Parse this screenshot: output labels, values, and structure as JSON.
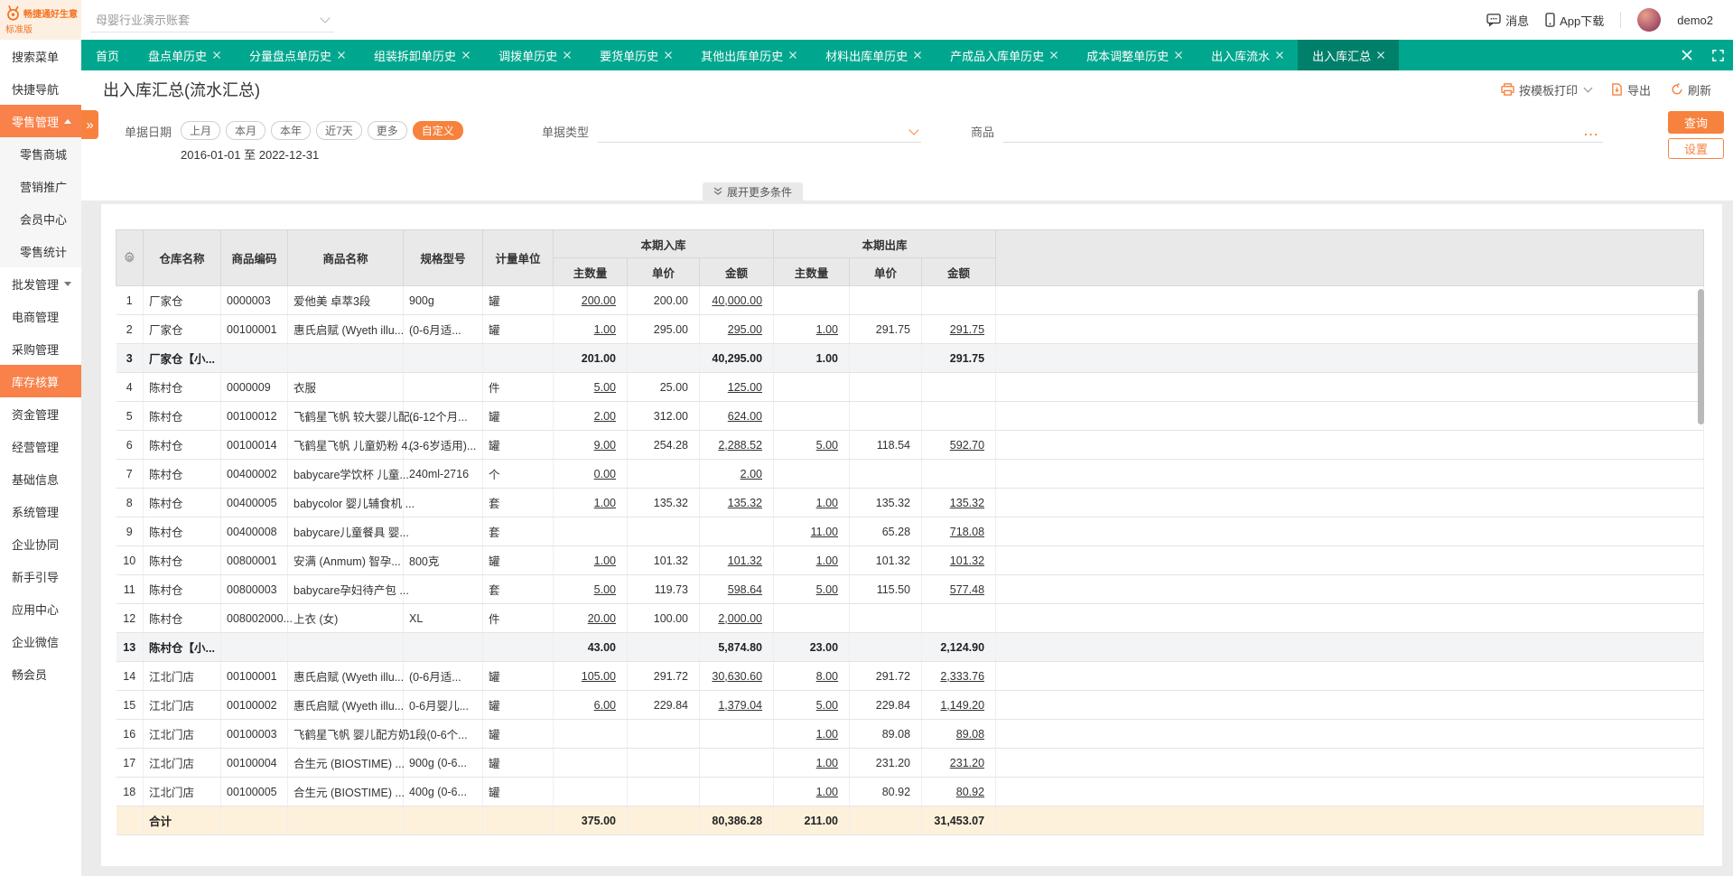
{
  "colors": {
    "accent_orange": "#f7823e",
    "teal": "#00a78e",
    "teal_active_tab": "#00806b",
    "total_row_bg": "#fdf1dc"
  },
  "topbar": {
    "logo_title": "畅捷通好生意",
    "logo_edition": "标准版",
    "account": "母婴行业演示账套",
    "messages_label": "消息",
    "app_download_label": "App下载",
    "username": "demo2"
  },
  "tabs": {
    "items": [
      {
        "label": "首页",
        "closable": false,
        "active": false
      },
      {
        "label": "盘点单历史",
        "closable": true,
        "active": false
      },
      {
        "label": "分量盘点单历史",
        "closable": true,
        "active": false
      },
      {
        "label": "组装拆卸单历史",
        "closable": true,
        "active": false
      },
      {
        "label": "调拨单历史",
        "closable": true,
        "active": false
      },
      {
        "label": "要货单历史",
        "closable": true,
        "active": false
      },
      {
        "label": "其他出库单历史",
        "closable": true,
        "active": false
      },
      {
        "label": "材料出库单历史",
        "closable": true,
        "active": false
      },
      {
        "label": "产成品入库单历史",
        "closable": true,
        "active": false
      },
      {
        "label": "成本调整单历史",
        "closable": true,
        "active": false
      },
      {
        "label": "出入库流水",
        "closable": true,
        "active": false
      },
      {
        "label": "出入库汇总",
        "closable": true,
        "active": true
      }
    ]
  },
  "sidebar": {
    "items": [
      {
        "label": "搜索菜单",
        "type": "item"
      },
      {
        "label": "快捷导航",
        "type": "item"
      },
      {
        "label": "零售管理",
        "type": "group",
        "state": "open",
        "active": true
      },
      {
        "label": "零售商城",
        "type": "sub"
      },
      {
        "label": "营销推广",
        "type": "sub"
      },
      {
        "label": "会员中心",
        "type": "sub"
      },
      {
        "label": "零售统计",
        "type": "sub"
      },
      {
        "label": "批发管理",
        "type": "group",
        "state": "closed"
      },
      {
        "label": "电商管理",
        "type": "item"
      },
      {
        "label": "采购管理",
        "type": "item"
      },
      {
        "label": "库存核算",
        "type": "item",
        "active": true
      },
      {
        "label": "资金管理",
        "type": "item"
      },
      {
        "label": "经营管理",
        "type": "item"
      },
      {
        "label": "基础信息",
        "type": "item"
      },
      {
        "label": "系统管理",
        "type": "item"
      },
      {
        "label": "企业协同",
        "type": "item"
      },
      {
        "label": "新手引导",
        "type": "item"
      },
      {
        "label": "应用中心",
        "type": "item"
      },
      {
        "label": "企业微信",
        "type": "item"
      },
      {
        "label": "畅会员",
        "type": "item"
      }
    ]
  },
  "page": {
    "title": "出入库汇总(流水汇总)",
    "actions": {
      "print": "按模板打印",
      "export": "导出",
      "refresh": "刷新"
    }
  },
  "filters": {
    "date_label": "单据日期",
    "date_presets": [
      "上月",
      "本月",
      "本年",
      "近7天",
      "更多"
    ],
    "date_custom": "自定义",
    "date_range": "2016-01-01 至 2022-12-31",
    "doc_type_label": "单据类型",
    "product_label": "商品",
    "search_button": "查询",
    "settings_button": "设置",
    "expand_more": "展开更多条件"
  },
  "table": {
    "columns": [
      "仓库名称",
      "商品编码",
      "商品名称",
      "规格型号",
      "计量单位"
    ],
    "group_in": "本期入库",
    "group_out": "本期出库",
    "sub_columns": [
      "主数量",
      "单价",
      "金额"
    ],
    "rows": [
      {
        "no": "1",
        "type": "data",
        "warehouse": "厂家仓",
        "code": "0000003",
        "name": "爱他美 卓萃3段",
        "spec": "900g",
        "unit": "罐",
        "in_qty": "200.00",
        "in_price": "200.00",
        "in_amt": "40,000.00",
        "out_qty": "",
        "out_price": "",
        "out_amt": ""
      },
      {
        "no": "2",
        "type": "data",
        "warehouse": "厂家仓",
        "code": "00100001",
        "name": "惠氏启赋 (Wyeth illu...",
        "spec": "(0-6月适...",
        "unit": "罐",
        "in_qty": "1.00",
        "in_price": "295.00",
        "in_amt": "295.00",
        "out_qty": "1.00",
        "out_price": "291.75",
        "out_amt": "291.75"
      },
      {
        "no": "3",
        "type": "subtotal",
        "warehouse": "厂家仓【小...",
        "code": "",
        "name": "",
        "spec": "",
        "unit": "",
        "in_qty": "201.00",
        "in_price": "",
        "in_amt": "40,295.00",
        "out_qty": "1.00",
        "out_price": "",
        "out_amt": "291.75"
      },
      {
        "no": "4",
        "type": "data",
        "warehouse": "陈村仓",
        "code": "0000009",
        "name": "衣服",
        "spec": "",
        "unit": "件",
        "in_qty": "5.00",
        "in_price": "25.00",
        "in_amt": "125.00",
        "out_qty": "",
        "out_price": "",
        "out_amt": ""
      },
      {
        "no": "5",
        "type": "data",
        "warehouse": "陈村仓",
        "code": "00100012",
        "name": "飞鹤星飞帆 较大婴儿配...",
        "spec": "(6-12个月...",
        "unit": "罐",
        "in_qty": "2.00",
        "in_price": "312.00",
        "in_amt": "624.00",
        "out_qty": "",
        "out_price": "",
        "out_amt": ""
      },
      {
        "no": "6",
        "type": "data",
        "warehouse": "陈村仓",
        "code": "00100014",
        "name": "飞鹤星飞帆 儿童奶粉 4...",
        "spec": "(3-6岁适用)...",
        "unit": "罐",
        "in_qty": "9.00",
        "in_price": "254.28",
        "in_amt": "2,288.52",
        "out_qty": "5.00",
        "out_price": "118.54",
        "out_amt": "592.70"
      },
      {
        "no": "7",
        "type": "data",
        "warehouse": "陈村仓",
        "code": "00400002",
        "name": "babycare学饮杯 儿童...",
        "spec": "240ml-2716",
        "unit": "个",
        "in_qty": "0.00",
        "in_price": "",
        "in_amt": "2.00",
        "out_qty": "",
        "out_price": "",
        "out_amt": ""
      },
      {
        "no": "8",
        "type": "data",
        "warehouse": "陈村仓",
        "code": "00400005",
        "name": "babycolor 婴儿辅食机 ...",
        "spec": "",
        "unit": "套",
        "in_qty": "1.00",
        "in_price": "135.32",
        "in_amt": "135.32",
        "out_qty": "1.00",
        "out_price": "135.32",
        "out_amt": "135.32"
      },
      {
        "no": "9",
        "type": "data",
        "warehouse": "陈村仓",
        "code": "00400008",
        "name": "babycare儿童餐具 婴...",
        "spec": "",
        "unit": "套",
        "in_qty": "",
        "in_price": "",
        "in_amt": "",
        "out_qty": "11.00",
        "out_price": "65.28",
        "out_amt": "718.08"
      },
      {
        "no": "10",
        "type": "data",
        "warehouse": "陈村仓",
        "code": "00800001",
        "name": "安满 (Anmum) 智孕...",
        "spec": "800克",
        "unit": "罐",
        "in_qty": "1.00",
        "in_price": "101.32",
        "in_amt": "101.32",
        "out_qty": "1.00",
        "out_price": "101.32",
        "out_amt": "101.32"
      },
      {
        "no": "11",
        "type": "data",
        "warehouse": "陈村仓",
        "code": "00800003",
        "name": "babycare孕妇待产包 ...",
        "spec": "",
        "unit": "套",
        "in_qty": "5.00",
        "in_price": "119.73",
        "in_amt": "598.64",
        "out_qty": "5.00",
        "out_price": "115.50",
        "out_amt": "577.48"
      },
      {
        "no": "12",
        "type": "data",
        "warehouse": "陈村仓",
        "code": "008002000...",
        "name": "上衣 (女)",
        "spec": "XL",
        "unit": "件",
        "in_qty": "20.00",
        "in_price": "100.00",
        "in_amt": "2,000.00",
        "out_qty": "",
        "out_price": "",
        "out_amt": ""
      },
      {
        "no": "13",
        "type": "subtotal",
        "warehouse": "陈村仓【小...",
        "code": "",
        "name": "",
        "spec": "",
        "unit": "",
        "in_qty": "43.00",
        "in_price": "",
        "in_amt": "5,874.80",
        "out_qty": "23.00",
        "out_price": "",
        "out_amt": "2,124.90"
      },
      {
        "no": "14",
        "type": "data",
        "warehouse": "江北门店",
        "code": "00100001",
        "name": "惠氏启赋 (Wyeth illu...",
        "spec": "(0-6月适...",
        "unit": "罐",
        "in_qty": "105.00",
        "in_price": "291.72",
        "in_amt": "30,630.60",
        "out_qty": "8.00",
        "out_price": "291.72",
        "out_amt": "2,333.76"
      },
      {
        "no": "15",
        "type": "data",
        "warehouse": "江北门店",
        "code": "00100002",
        "name": "惠氏启赋 (Wyeth illu...",
        "spec": "0-6月婴儿...",
        "unit": "罐",
        "in_qty": "6.00",
        "in_price": "229.84",
        "in_amt": "1,379.04",
        "out_qty": "5.00",
        "out_price": "229.84",
        "out_amt": "1,149.20"
      },
      {
        "no": "16",
        "type": "data",
        "warehouse": "江北门店",
        "code": "00100003",
        "name": "飞鹤星飞帆 婴儿配方奶...",
        "spec": "1段(0-6个...",
        "unit": "罐",
        "in_qty": "",
        "in_price": "",
        "in_amt": "",
        "out_qty": "1.00",
        "out_price": "89.08",
        "out_amt": "89.08"
      },
      {
        "no": "17",
        "type": "data",
        "warehouse": "江北门店",
        "code": "00100004",
        "name": "合生元 (BIOSTIME) ...",
        "spec": "900g (0-6...",
        "unit": "罐",
        "in_qty": "",
        "in_price": "",
        "in_amt": "",
        "out_qty": "1.00",
        "out_price": "231.20",
        "out_amt": "231.20"
      },
      {
        "no": "18",
        "type": "data",
        "warehouse": "江北门店",
        "code": "00100005",
        "name": "合生元 (BIOSTIME) ...",
        "spec": "400g (0-6...",
        "unit": "罐",
        "in_qty": "",
        "in_price": "",
        "in_amt": "",
        "out_qty": "1.00",
        "out_price": "80.92",
        "out_amt": "80.92"
      }
    ],
    "total": {
      "label": "合计",
      "in_qty": "375.00",
      "in_amt": "80,386.28",
      "out_qty": "211.00",
      "out_amt": "31,453.07"
    }
  }
}
